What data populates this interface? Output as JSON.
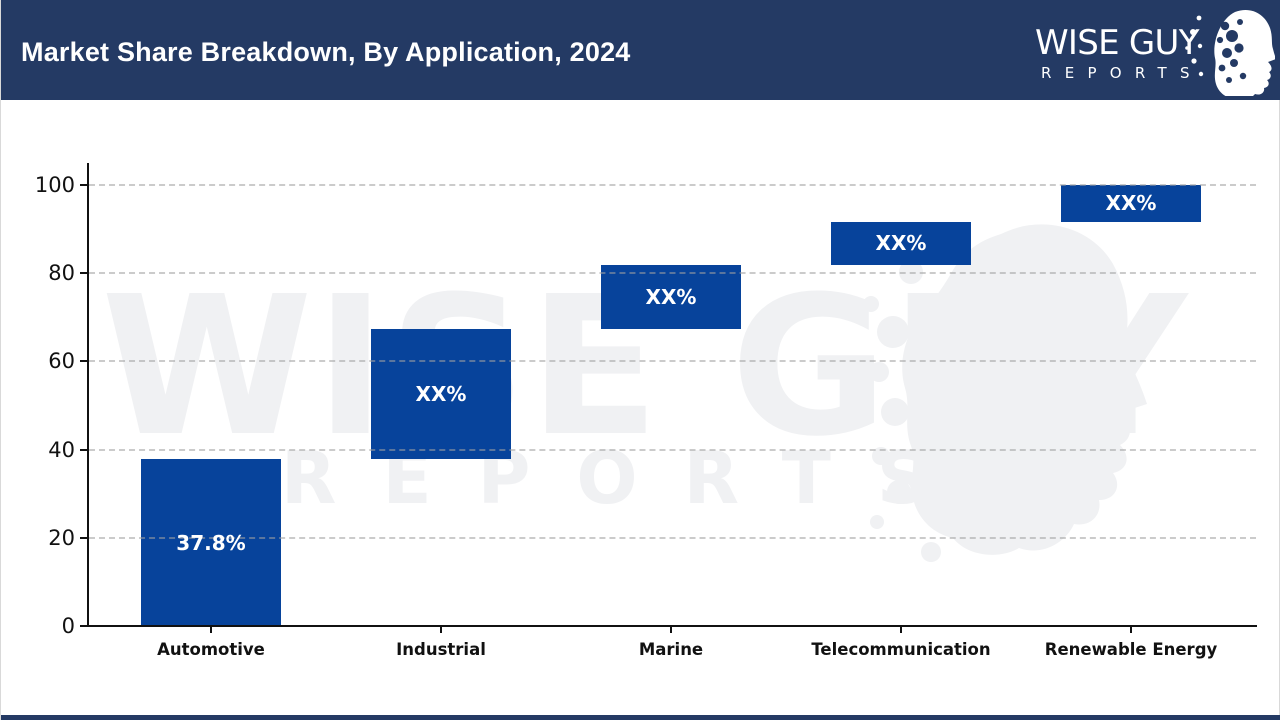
{
  "header": {
    "title": "Market Share Breakdown, By Application, 2024",
    "logo": {
      "line1": "WISE GUY",
      "line2": "REPORTS"
    }
  },
  "watermark": {
    "line1": "WISE GUY",
    "line2": "REPORTS"
  },
  "colors": {
    "header_bg": "#243a64",
    "bar": "#07439b",
    "bar_label": "#ffffff",
    "axis": "#111111",
    "grid": "#a0a0a0",
    "watermark": "#f0f1f3",
    "title_text": "#ffffff"
  },
  "chart_data": {
    "type": "bar",
    "subtype": "waterfall",
    "title": "Market Share Breakdown, By Application, 2024",
    "xlabel": "",
    "ylabel": "",
    "categories": [
      "Automotive",
      "Industrial",
      "Marine",
      "Telecommunication",
      "Renewable Energy"
    ],
    "segments": [
      {
        "category": "Automotive",
        "start": 0,
        "end": 37.8,
        "value": 37.8,
        "label": "37.8%"
      },
      {
        "category": "Industrial",
        "start": 37.8,
        "end": 67.3,
        "value": 29.5,
        "label": "XX%"
      },
      {
        "category": "Marine",
        "start": 67.3,
        "end": 81.9,
        "value": 14.6,
        "label": "XX%"
      },
      {
        "category": "Telecommunication",
        "start": 81.9,
        "end": 91.7,
        "value": 9.8,
        "label": "XX%"
      },
      {
        "category": "Renewable Energy",
        "start": 91.7,
        "end": 100,
        "value": 8.3,
        "label": "XX%"
      }
    ],
    "yticks": [
      0,
      20,
      40,
      60,
      80,
      100
    ],
    "ylim": [
      0,
      104.5
    ],
    "grid": "horizontal dashed gridlines at yticks, drawn above bars",
    "legend": "none"
  }
}
